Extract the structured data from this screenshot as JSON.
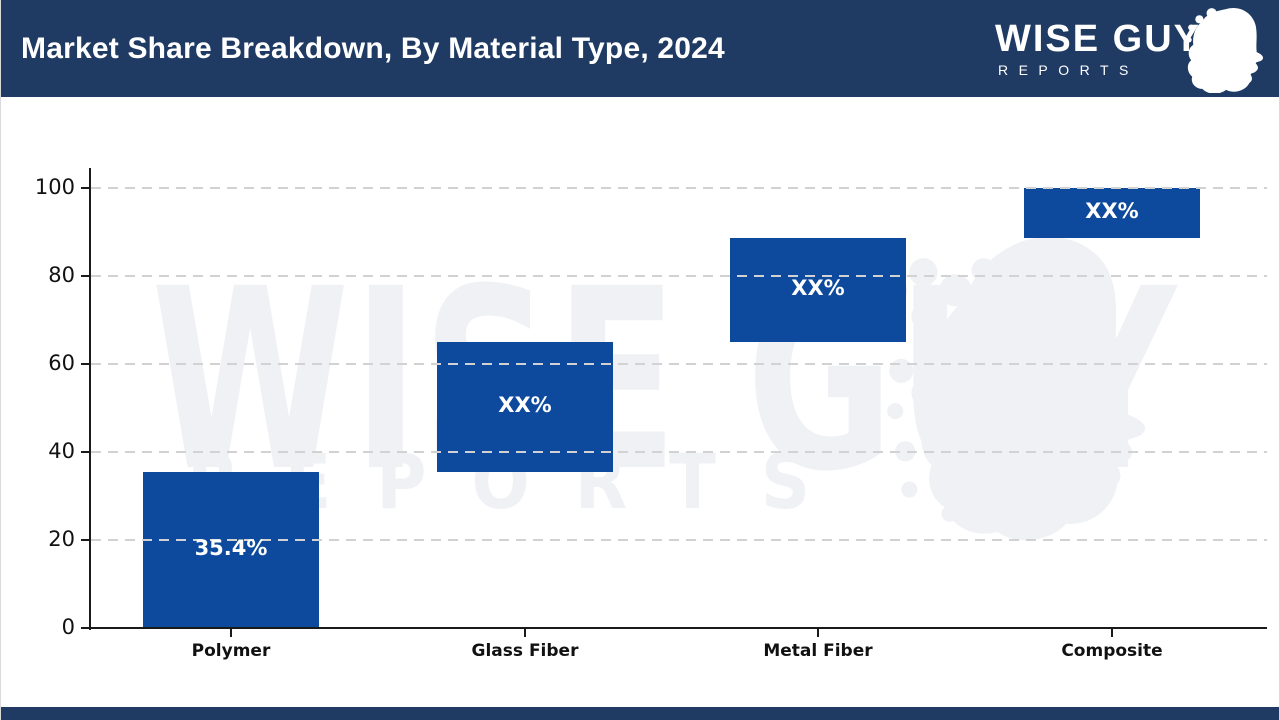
{
  "header": {
    "title": "Market Share Breakdown, By Material Type, 2024",
    "logo": {
      "wordmark": "WISE GUY",
      "subtext": "REPORTS"
    }
  },
  "watermark": {
    "wordmark": "WISE GUY",
    "subtext": "REPORTS"
  },
  "colors": {
    "header_bg": "#1F3A63",
    "footer_bg": "#1F3A63",
    "bar": "#0D499C",
    "bar_label": "#FFFFFF",
    "axis": "#1A1A1A",
    "gridline": "#D2D2D2",
    "watermark": "#EFF1F4"
  },
  "chart_data": {
    "type": "bar",
    "variant": "waterfall",
    "title": "Market Share Breakdown, By Material Type, 2024",
    "categories": [
      "Polymer",
      "Glass Fiber",
      "Metal Fiber",
      "Composite"
    ],
    "segments": [
      {
        "category": "Polymer",
        "start": 0,
        "end": 35.4,
        "label": "35.4%"
      },
      {
        "category": "Glass Fiber",
        "start": 35.4,
        "end": 65.0,
        "label": "XX%"
      },
      {
        "category": "Metal Fiber",
        "start": 65.0,
        "end": 88.6,
        "label": "XX%"
      },
      {
        "category": "Composite",
        "start": 88.6,
        "end": 100.0,
        "label": "XX%"
      }
    ],
    "ylim": [
      0,
      105
    ],
    "yticks": [
      0,
      20,
      40,
      60,
      80,
      100
    ],
    "xlabel": "",
    "ylabel": "",
    "grid": "horizontal-dashed",
    "legend": "none"
  }
}
